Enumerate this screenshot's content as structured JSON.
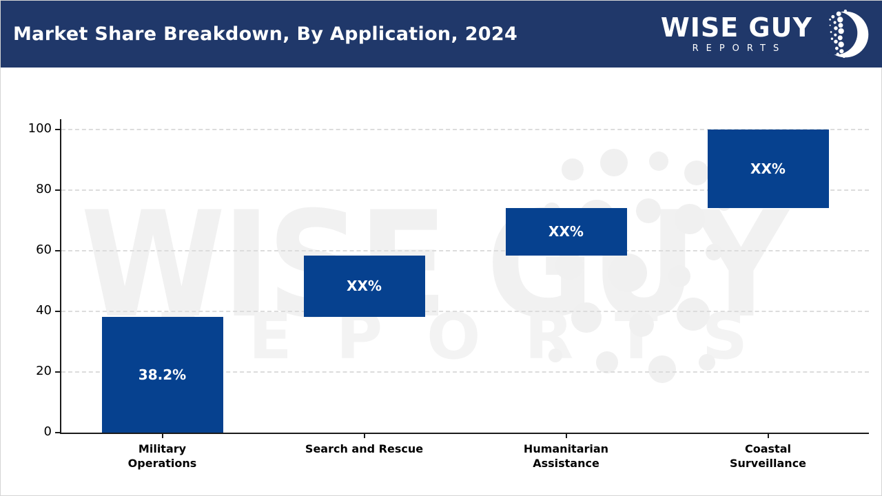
{
  "header": {
    "title": "Market Share Breakdown, By Application, 2024",
    "bg_color": "#20386a",
    "logo": {
      "line1": "WISE GUY",
      "line2": "REPORTS"
    }
  },
  "watermark": {
    "line1": "WISE GUY",
    "line2": "REPORTS"
  },
  "chart_data": {
    "type": "bar",
    "subtype": "waterfall",
    "title": "Market Share Breakdown, By Application, 2024",
    "categories": [
      "Military\nOperations",
      "Search and Rescue",
      "Humanitarian\nAssistance",
      "Coastal\nSurveillance"
    ],
    "segments": [
      {
        "start": 0,
        "end": 38.2,
        "label": "38.2%"
      },
      {
        "start": 38.2,
        "end": 58.5,
        "label": "XX%"
      },
      {
        "start": 58.5,
        "end": 74.1,
        "label": "XX%"
      },
      {
        "start": 74.1,
        "end": 100,
        "label": "XX%"
      }
    ],
    "value_labels": [
      "38.2%",
      "XX%",
      "XX%",
      "XX%"
    ],
    "yticks": [
      0,
      20,
      40,
      60,
      80,
      100
    ],
    "ylim": [
      0,
      105
    ],
    "xlabel": "",
    "ylabel": "",
    "grid": "horizontal-dashed",
    "grid_color": "#dcdcdc",
    "bar_color": "#06418f",
    "label_color": "#ffffff",
    "axis_color": "#1a1a1a",
    "legend": "none"
  }
}
